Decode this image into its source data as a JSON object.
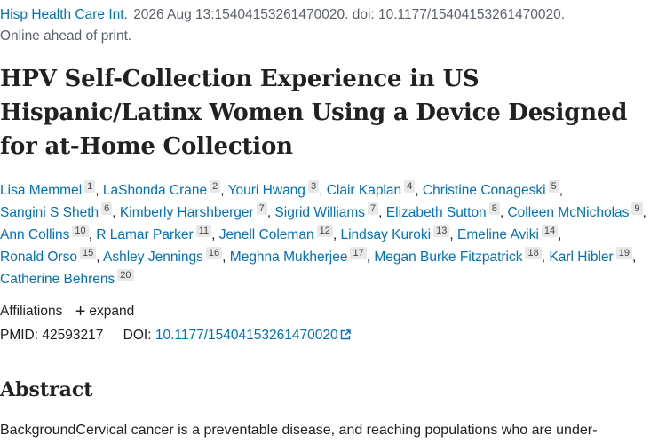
{
  "citation": {
    "journal": "Hisp Health Care Int.",
    "details": "2026 Aug 13:15404153261470020. doi: 10.1177/15404153261470020.",
    "status": "Online ahead of print."
  },
  "title": "HPV Self-Collection Experience in US Hispanic/Latinx Women Using a Device Designed for at-Home Collection",
  "authors": [
    {
      "name": "Lisa Memmel",
      "aff": "1"
    },
    {
      "name": "LaShonda Crane",
      "aff": "2"
    },
    {
      "name": "Youri Hwang",
      "aff": "3"
    },
    {
      "name": "Clair Kaplan",
      "aff": "4"
    },
    {
      "name": "Christine Conageski",
      "aff": "5"
    },
    {
      "name": "Sangini S Sheth",
      "aff": "6"
    },
    {
      "name": "Kimberly Harshberger",
      "aff": "7"
    },
    {
      "name": "Sigrid Williams",
      "aff": "7"
    },
    {
      "name": "Elizabeth Sutton",
      "aff": "8"
    },
    {
      "name": "Colleen McNicholas",
      "aff": "9"
    },
    {
      "name": "Ann Collins",
      "aff": "10"
    },
    {
      "name": "R Lamar Parker",
      "aff": "11"
    },
    {
      "name": "Jenell Coleman",
      "aff": "12"
    },
    {
      "name": "Lindsay Kuroki",
      "aff": "13"
    },
    {
      "name": "Emeline Aviki",
      "aff": "14"
    },
    {
      "name": "Ronald Orso",
      "aff": "15"
    },
    {
      "name": "Ashley Jennings",
      "aff": "16"
    },
    {
      "name": "Meghna Mukherjee",
      "aff": "17"
    },
    {
      "name": "Megan Burke Fitzpatrick",
      "aff": "18"
    },
    {
      "name": "Karl Hibler",
      "aff": "19"
    },
    {
      "name": "Catherine Behrens",
      "aff": "20"
    }
  ],
  "affiliations": {
    "label": "Affiliations",
    "expand_icon": "+",
    "expand_label": "expand"
  },
  "identifiers": {
    "pmid_label": "PMID:",
    "pmid": "42593217",
    "doi_label": "DOI:",
    "doi": "10.1177/15404153261470020"
  },
  "abstract": {
    "heading": "Abstract",
    "text": "BackgroundCervical cancer is a preventable disease, and reaching populations who are under-"
  },
  "colors": {
    "link": "#0071bc",
    "muted": "#5b616b",
    "badge_bg": "#e8e8e8"
  },
  "icons": {
    "external_link": "external-link-icon",
    "expand": "plus-icon"
  }
}
